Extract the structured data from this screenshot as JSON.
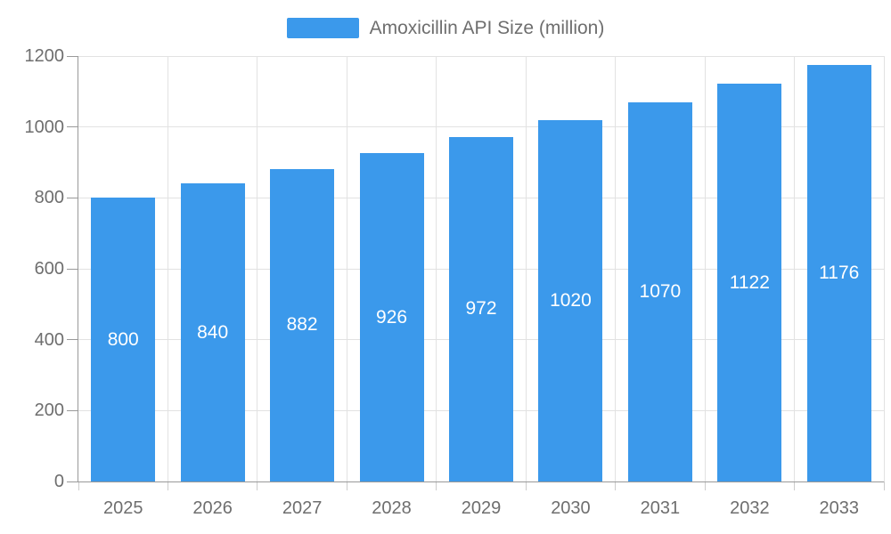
{
  "chart_data": {
    "type": "bar",
    "title": "",
    "legend": "Amoxicillin API Size (million)",
    "categories": [
      "2025",
      "2026",
      "2027",
      "2028",
      "2029",
      "2030",
      "2031",
      "2032",
      "2033"
    ],
    "values": [
      800,
      840,
      882,
      926,
      972,
      1020,
      1070,
      1122,
      1176
    ],
    "xlabel": "",
    "ylabel": "",
    "ylim": [
      0,
      1200
    ],
    "yticks": [
      0,
      200,
      400,
      600,
      800,
      1000,
      1200
    ],
    "grid": true,
    "legend_position": "top",
    "bar_label_position": "center-inside"
  },
  "colors": {
    "bar": "#3B99EB",
    "bar_label": "#FFFFFF",
    "grid_line": "#E2E2E2",
    "axis_line": "#999999",
    "x_tick_mark": "#CCCCCC",
    "tick_label": "#6E6E6E",
    "legend_text": "#6E6E6E",
    "background": "#FFFFFF"
  }
}
